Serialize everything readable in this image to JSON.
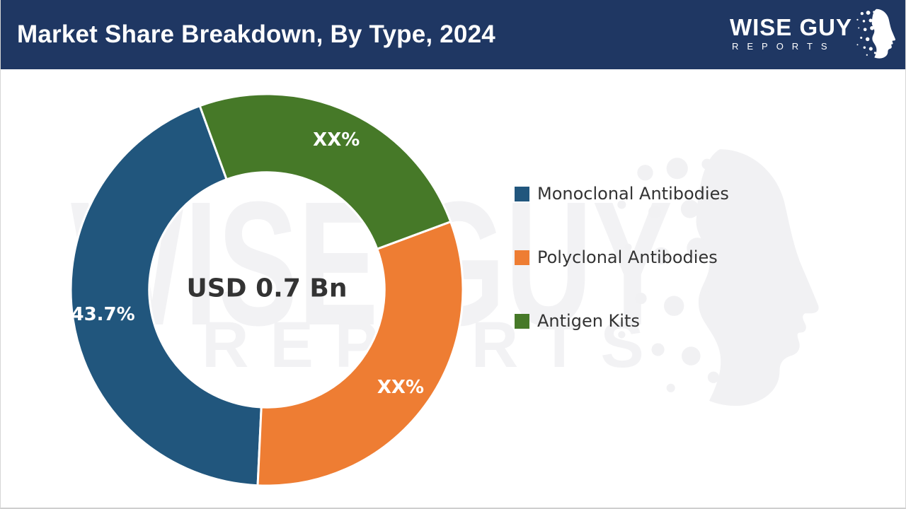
{
  "header": {
    "title": "Market Share Breakdown, By Type, 2024",
    "bg_color": "#1F3763"
  },
  "logo": {
    "name": "WISE GUY",
    "sub": "REPORTS"
  },
  "watermark": {
    "name": "WISE GUY",
    "sub": "REPORTS"
  },
  "chart_data": {
    "type": "pie",
    "variant": "donut",
    "title": "Market Share Breakdown, By Type, 2024",
    "center_label": "USD 0.7 Bn",
    "inner_radius_ratio": 0.6,
    "start_angle_deg": 110,
    "direction": "counterclockwise",
    "legend_position": "right",
    "segments": [
      {
        "name": "Monoclonal Antibodies",
        "value_pct": 43.7,
        "displayed_label": "43.7%",
        "color": "#21567D"
      },
      {
        "name": "Polyclonal Antibodies",
        "value_pct": 31.4,
        "displayed_label": "XX%",
        "color": "#EE7D33"
      },
      {
        "name": "Antigen Kits",
        "value_pct": 24.9,
        "displayed_label": "XX%",
        "color": "#467928"
      }
    ]
  },
  "colors": {
    "header_bg": "#1F3763",
    "legend_text": "#333333",
    "center_text": "#333333",
    "separator": "#ffffff",
    "watermark": "#f2f2f4"
  }
}
